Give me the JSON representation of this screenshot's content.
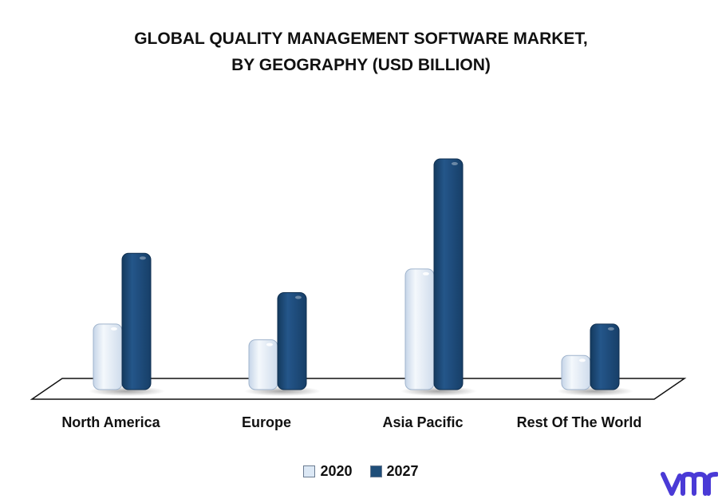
{
  "title_line1": "GLOBAL QUALITY MANAGEMENT SOFTWARE MARKET,",
  "title_line2": "BY GEOGRAPHY (USD BILLION)",
  "colors": {
    "series_2020": "#dce8f5",
    "series_2027": "#1f4e79",
    "logo": "#4a3ad6"
  },
  "logo_icon": "vmr-logo",
  "chart_data": {
    "type": "bar",
    "categories": [
      "North America",
      "Europe",
      "Asia Pacific",
      "Rest Of The World"
    ],
    "series": [
      {
        "name": "2020",
        "values": [
          2.5,
          1.9,
          4.6,
          1.3
        ]
      },
      {
        "name": "2027",
        "values": [
          5.2,
          3.7,
          8.8,
          2.5
        ]
      }
    ],
    "ylim": [
      0,
      9.5
    ],
    "grid": false,
    "legend": "bottom"
  }
}
